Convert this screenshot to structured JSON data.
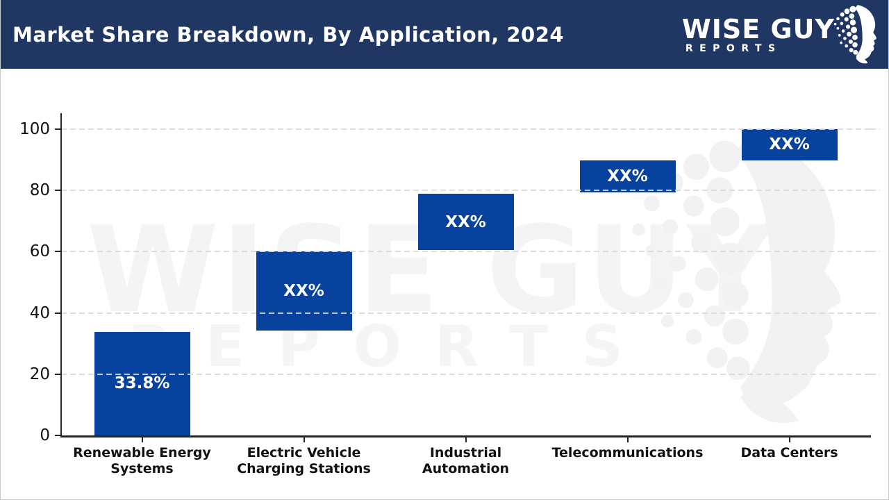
{
  "header": {
    "title": "Market Share Breakdown, By Application, 2024",
    "logo": {
      "line1": "WISE GUY",
      "line2": "REPORTS"
    }
  },
  "watermark": {
    "line1": "WISE GUY",
    "line2": "REPORTS"
  },
  "icons": {
    "logo_head": "dotted-head-profile",
    "watermark_head": "dotted-head-profile"
  },
  "colors": {
    "header_bg": "#203764",
    "bar": "#07429f",
    "bar_label": "#ffffff",
    "grid": "#d9d9d9",
    "axis": "#262626",
    "tick_label": "#111111",
    "watermark": "#f4f4f4"
  },
  "chart_data": {
    "type": "bar",
    "subtype": "waterfall",
    "title": "Market Share Breakdown, By Application, 2024",
    "xlabel": "",
    "ylabel": "",
    "categories": [
      [
        "Renewable Energy",
        "Systems"
      ],
      [
        "Electric Vehicle",
        "Charging Stations"
      ],
      [
        "Industrial",
        "Automation"
      ],
      [
        "Telecommunications"
      ],
      [
        "Data Centers"
      ]
    ],
    "segments": [
      {
        "start": 0,
        "end": 33.8,
        "label": "33.8%"
      },
      {
        "start": 34.2,
        "end": 60.1,
        "label": "XX%"
      },
      {
        "start": 60.5,
        "end": 78.9,
        "label": "XX%"
      },
      {
        "start": 79.4,
        "end": 89.8,
        "label": "XX%"
      },
      {
        "start": 89.8,
        "end": 100,
        "label": "XX%"
      }
    ],
    "ylim": [
      0,
      105
    ],
    "yticks": [
      0,
      20,
      40,
      60,
      80,
      100
    ],
    "grid": "dashed-horizontal-over-bars",
    "legend": "none"
  }
}
